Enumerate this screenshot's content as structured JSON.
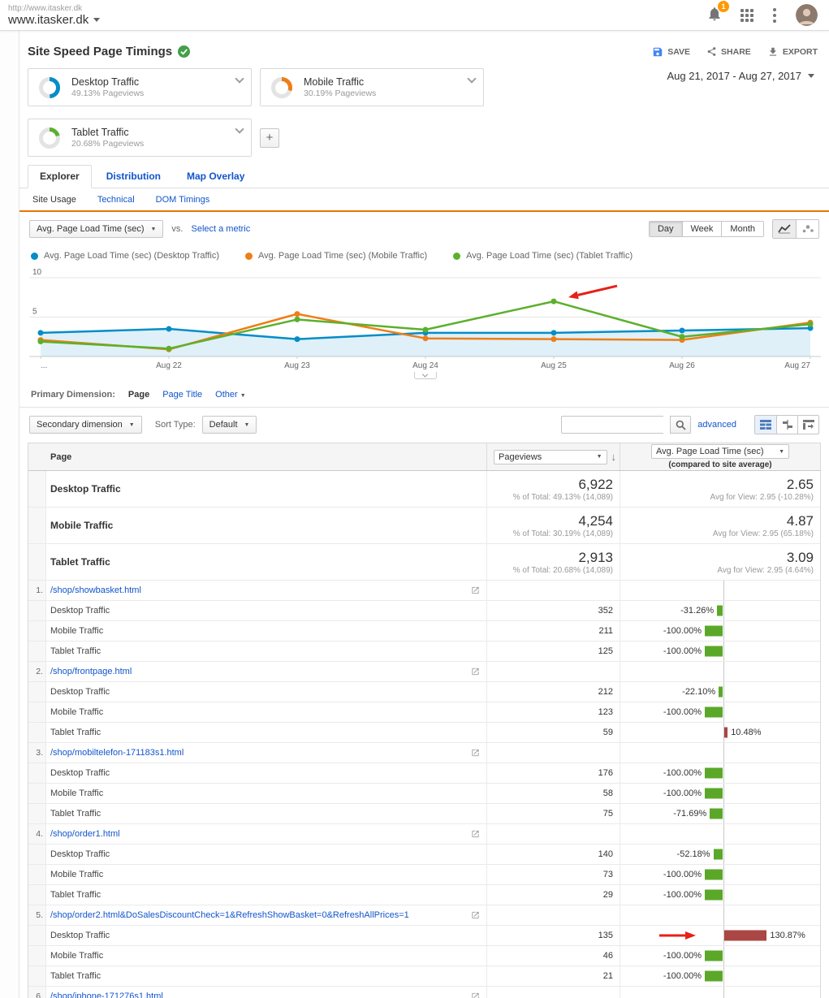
{
  "topbar": {
    "url": "http://www.itasker.dk",
    "site": "www.itasker.dk",
    "bell_badge": "1"
  },
  "header": {
    "title": "Site Speed Page Timings",
    "save_label": "SAVE",
    "share_label": "SHARE",
    "export_label": "EXPORT",
    "date_range": "Aug 21, 2017 - Aug 27, 2017"
  },
  "segments": [
    {
      "name": "Desktop Traffic",
      "detail": "49.13% Pageviews",
      "pct": 49.13,
      "color": "#058dc7"
    },
    {
      "name": "Mobile Traffic",
      "detail": "30.19% Pageviews",
      "pct": 30.19,
      "color": "#ed7e17"
    },
    {
      "name": "Tablet Traffic",
      "detail": "20.68% Pageviews",
      "pct": 20.68,
      "color": "#5cb02c"
    }
  ],
  "add_segment_label": "+",
  "tabs": [
    "Explorer",
    "Distribution",
    "Map Overlay"
  ],
  "subtabs": [
    "Site Usage",
    "Technical",
    "DOM Timings"
  ],
  "metric_bar": {
    "metric": "Avg. Page Load Time (sec)",
    "vs": "vs.",
    "select_metric": "Select a metric",
    "granularity": [
      "Day",
      "Week",
      "Month"
    ]
  },
  "chart_data": {
    "type": "line",
    "x": [
      "...",
      "Aug 22",
      "Aug 23",
      "Aug 24",
      "Aug 25",
      "Aug 26",
      "Aug 27"
    ],
    "ylim": [
      0,
      10
    ],
    "yticks": [
      5,
      10
    ],
    "grid": true,
    "legend_position": "top",
    "series": [
      {
        "name": "Avg. Page Load Time (sec) (Desktop Traffic)",
        "color": "#058dc7",
        "area": true,
        "values": [
          3.0,
          3.5,
          2.2,
          3.0,
          3.0,
          3.3,
          3.6
        ]
      },
      {
        "name": "Avg. Page Load Time (sec) (Mobile Traffic)",
        "color": "#ed7e17",
        "area": false,
        "values": [
          2.1,
          0.9,
          5.4,
          2.3,
          2.2,
          2.1,
          4.3
        ]
      },
      {
        "name": "Avg. Page Load Time (sec) (Tablet Traffic)",
        "color": "#5cb02c",
        "area": false,
        "values": [
          1.9,
          1.0,
          4.7,
          3.4,
          7.0,
          2.5,
          4.1
        ]
      }
    ],
    "annotation": {
      "type": "red-arrow",
      "series": 2,
      "point": 4
    }
  },
  "dimension_bar": {
    "label": "Primary Dimension:",
    "options": [
      "Page",
      "Page Title",
      "Other"
    ]
  },
  "table_toolbar": {
    "secondary_dimension": "Secondary dimension",
    "sort_type_label": "Sort Type:",
    "sort_type_value": "Default",
    "search_value": "",
    "advanced": "advanced"
  },
  "table": {
    "columns": {
      "page": "Page",
      "pageviews": "Pageviews",
      "metric": "Avg. Page Load Time (sec)",
      "metric_sub": "(compared to site average)"
    },
    "summary": [
      {
        "name": "Desktop Traffic",
        "pageviews": "6,922",
        "pv_sub": "% of Total: 49.13% (14,089)",
        "value": "2.65",
        "val_sub": "Avg for View: 2.95 (-10.28%)"
      },
      {
        "name": "Mobile Traffic",
        "pageviews": "4,254",
        "pv_sub": "% of Total: 30.19% (14,089)",
        "value": "4.87",
        "val_sub": "Avg for View: 2.95 (65.18%)"
      },
      {
        "name": "Tablet Traffic",
        "pageviews": "2,913",
        "pv_sub": "% of Total: 20.68% (14,089)",
        "value": "3.09",
        "val_sub": "Avg for View: 2.95 (4.64%)"
      }
    ],
    "rows": [
      {
        "index": "1.",
        "page": "/shop/showbasket.html",
        "segments": [
          {
            "name": "Desktop Traffic",
            "pageviews": "352",
            "pct": -31.26,
            "label": "-31.26%"
          },
          {
            "name": "Mobile Traffic",
            "pageviews": "211",
            "pct": -100.0,
            "label": "-100.00%"
          },
          {
            "name": "Tablet Traffic",
            "pageviews": "125",
            "pct": -100.0,
            "label": "-100.00%"
          }
        ]
      },
      {
        "index": "2.",
        "page": "/shop/frontpage.html",
        "segments": [
          {
            "name": "Desktop Traffic",
            "pageviews": "212",
            "pct": -22.1,
            "label": "-22.10%"
          },
          {
            "name": "Mobile Traffic",
            "pageviews": "123",
            "pct": -100.0,
            "label": "-100.00%"
          },
          {
            "name": "Tablet Traffic",
            "pageviews": "59",
            "pct": 10.48,
            "label": "10.48%"
          }
        ]
      },
      {
        "index": "3.",
        "page": "/shop/mobiltelefon-171183s1.html",
        "segments": [
          {
            "name": "Desktop Traffic",
            "pageviews": "176",
            "pct": -100.0,
            "label": "-100.00%"
          },
          {
            "name": "Mobile Traffic",
            "pageviews": "58",
            "pct": -100.0,
            "label": "-100.00%"
          },
          {
            "name": "Tablet Traffic",
            "pageviews": "75",
            "pct": -71.69,
            "label": "-71.69%"
          }
        ]
      },
      {
        "index": "4.",
        "page": "/shop/order1.html",
        "segments": [
          {
            "name": "Desktop Traffic",
            "pageviews": "140",
            "pct": -52.18,
            "label": "-52.18%"
          },
          {
            "name": "Mobile Traffic",
            "pageviews": "73",
            "pct": -100.0,
            "label": "-100.00%"
          },
          {
            "name": "Tablet Traffic",
            "pageviews": "29",
            "pct": -100.0,
            "label": "-100.00%"
          }
        ]
      },
      {
        "index": "5.",
        "page": "/shop/order2.html&DoSalesDiscountCheck=1&RefreshShowBasket=0&RefreshAllPrices=1",
        "segments": [
          {
            "name": "Desktop Traffic",
            "pageviews": "135",
            "pct": 130.87,
            "label": "130.87%",
            "arrow": true
          },
          {
            "name": "Mobile Traffic",
            "pageviews": "46",
            "pct": -100.0,
            "label": "-100.00%"
          },
          {
            "name": "Tablet Traffic",
            "pageviews": "21",
            "pct": -100.0,
            "label": "-100.00%"
          }
        ]
      },
      {
        "index": "6.",
        "page": "/shop/iphone-171276s1.html",
        "segments": []
      }
    ]
  },
  "ui": {
    "select_caret": "▼",
    "sort_arrow": "↓"
  },
  "colors": {
    "accent_orange": "#e87600",
    "link_blue": "#1155cc",
    "desktop_blue": "#058dc7",
    "mobile_orange": "#ed7e17",
    "tablet_green": "#5cb02c",
    "bar_green": "#5ba829",
    "bar_red": "#aa4643",
    "arrow_red": "#e62117",
    "badge_orange": "#ff9900"
  },
  "icons": {
    "bell": "notifications-bell",
    "apps": "apps-grid",
    "more": "more-vertical",
    "avatar": "user-avatar",
    "verified": "green-check-badge",
    "save": "floppy-disk",
    "share": "share-nodes",
    "export": "download-arrow",
    "search": "magnifier",
    "open_page": "open-in-new",
    "views": [
      "table-view",
      "comparison-view",
      "pivot-view"
    ],
    "chart_types": [
      "line-chart",
      "motion-chart"
    ]
  }
}
